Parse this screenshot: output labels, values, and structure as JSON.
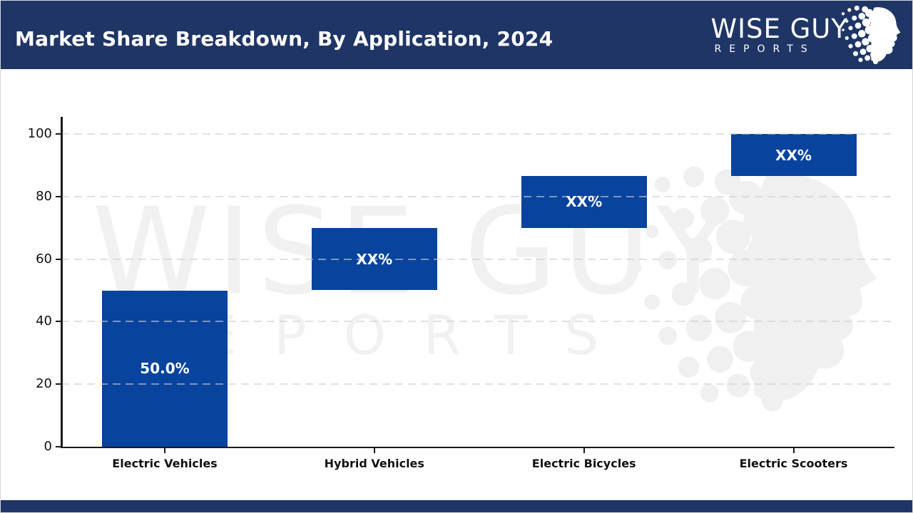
{
  "header": {
    "title": "Market Share Breakdown, By Application, 2024",
    "logo": {
      "line1": "WISE GUY",
      "line2": "REPORTS"
    }
  },
  "watermark": {
    "line1": "WISE GUY",
    "line2": "REPORTS"
  },
  "chart_data": {
    "type": "bar",
    "subtype": "waterfall",
    "title": "Market Share Breakdown, By Application, 2024",
    "xlabel": "",
    "ylabel": "",
    "categories": [
      "Electric Vehicles",
      "Hybrid Vehicles",
      "Electric Bicycles",
      "Electric Scooters"
    ],
    "segments": [
      {
        "category": "Electric Vehicles",
        "start": 0,
        "end": 50,
        "value_label": "50.0%"
      },
      {
        "category": "Hybrid Vehicles",
        "start": 50,
        "end": 70,
        "value_label": "XX%"
      },
      {
        "category": "Electric Bicycles",
        "start": 70,
        "end": 86.5,
        "value_label": "XX%"
      },
      {
        "category": "Electric Scooters",
        "start": 86.5,
        "end": 100,
        "value_label": "XX%"
      }
    ],
    "yticks": [
      0,
      20,
      40,
      60,
      80,
      100
    ],
    "ylim": [
      0,
      105
    ],
    "grid": "horizontal-dashed",
    "legend": "none"
  },
  "colors": {
    "header_bg": "#1f3566",
    "footer_bg": "#1f3566",
    "bar_fill": "#08439d",
    "grid_line_rgba": "rgba(205,205,205,0.6)",
    "axis": "#1a1a1a",
    "bar_label_text": "#ffffff",
    "watermark": "#f0f0f0"
  }
}
